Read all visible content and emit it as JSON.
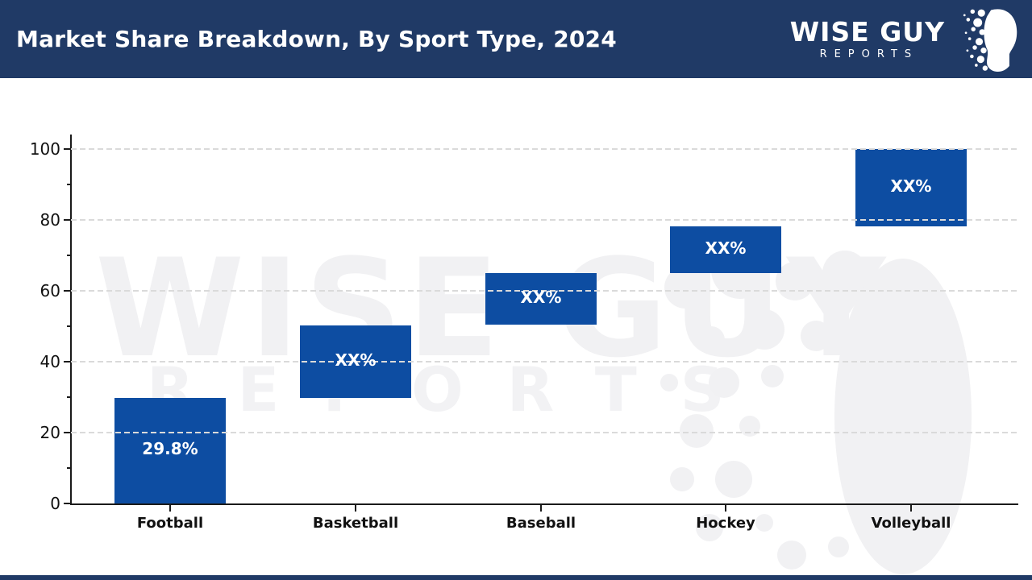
{
  "header": {
    "title": "Market Share Breakdown, By Sport Type, 2024",
    "bg_color": "#203a66",
    "logo": {
      "line1": "WISE GUY",
      "line2": "REPORTS"
    }
  },
  "watermark": {
    "line1": "WISE GUY",
    "line2": "REPORTS"
  },
  "footer": {
    "bar_color": "#203a66"
  },
  "chart_data": {
    "type": "bar",
    "subtype": "waterfall",
    "title": "Market Share Breakdown, By Sport Type, 2024",
    "categories": [
      "Football",
      "Basketball",
      "Baseball",
      "Hockey",
      "Volleyball"
    ],
    "segments": [
      {
        "category": "Football",
        "start": 0,
        "end": 29.8,
        "label": "29.8%"
      },
      {
        "category": "Basketball",
        "start": 29.8,
        "end": 50.3,
        "label": "XX%"
      },
      {
        "category": "Baseball",
        "start": 50.5,
        "end": 65.0,
        "label": "XX%"
      },
      {
        "category": "Hockey",
        "start": 65.0,
        "end": 78.2,
        "label": "XX%"
      },
      {
        "category": "Volleyball",
        "start": 78.2,
        "end": 100,
        "label": "XX%"
      }
    ],
    "xlabel": "",
    "ylabel": "",
    "ylim": [
      0,
      100
    ],
    "y_ticks": [
      0,
      20,
      40,
      60,
      80,
      100
    ],
    "y_minor_ticks": [
      10,
      30,
      50,
      70,
      90
    ],
    "grid": "horizontal-dashed-above-bars",
    "legend": "none",
    "bar_color": "#0d4da2",
    "bar_label_color": "#ffffff",
    "grid_color": "#dadada",
    "axis_color": "#1a1a1a"
  }
}
